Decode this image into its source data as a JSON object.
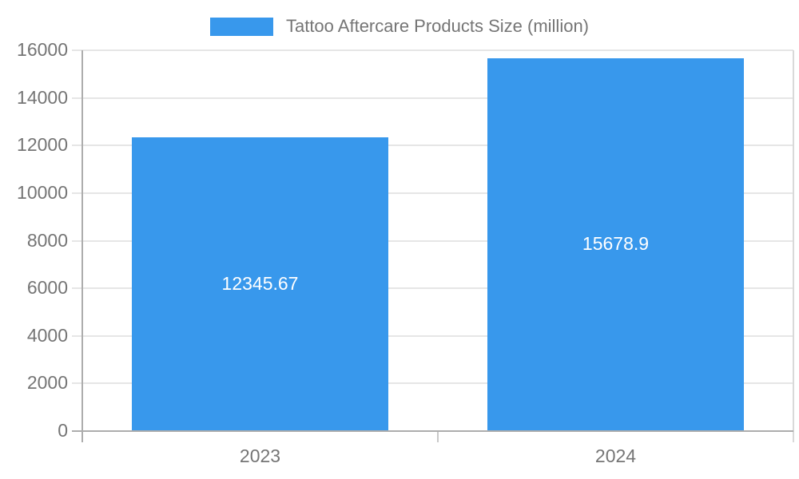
{
  "chart_data": {
    "type": "bar",
    "title": "Tattoo Aftercare Products Size (million)",
    "categories": [
      "2023",
      "2024"
    ],
    "values": [
      12345.67,
      15678.9
    ],
    "value_labels": [
      "12345.67",
      "15678.9"
    ],
    "series": [
      {
        "name": "Tattoo Aftercare Products Size (million)",
        "values": [
          12345.67,
          15678.9
        ]
      }
    ],
    "xlabel": "",
    "ylabel": "",
    "ylim": [
      0,
      16000
    ],
    "y_tick_step": 2000,
    "y_tick_labels": [
      "0",
      "2000",
      "4000",
      "6000",
      "8000",
      "10000",
      "12000",
      "14000",
      "16000"
    ],
    "grid": true,
    "legend_position": "top",
    "bar_width_fraction": 0.72,
    "colors": {
      "bar": "#3898EC",
      "value_label": "#ffffff",
      "axis_line": "#adadad",
      "grid_line": "#e6e6e6",
      "tick_label": "#757575",
      "legend_text": "#757575",
      "boundary_tick": "#c9c9c9",
      "right_border": "#d9d9d9",
      "background": "#ffffff"
    }
  }
}
